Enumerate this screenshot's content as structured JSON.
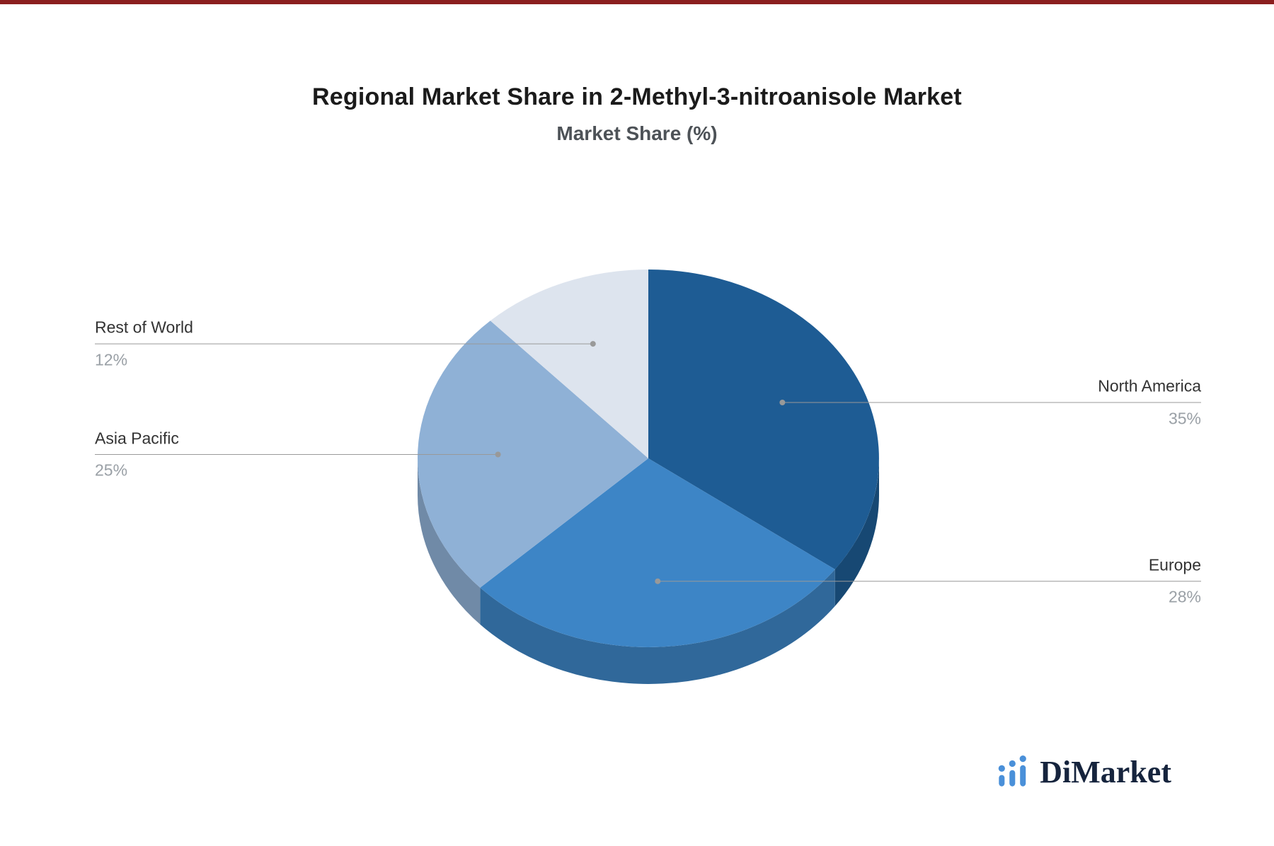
{
  "page": {
    "title": "Regional Market Share in 2-Methyl-3-nitroanisole Market",
    "subtitle": "Market Share (%)"
  },
  "decor": {
    "top_bar_color": "#8b1f1f"
  },
  "chart_data": {
    "type": "pie",
    "title": "Regional Market Share in 2-Methyl-3-nitroanisole Market",
    "subtitle": "Market Share (%)",
    "unit": "%",
    "effect": "3d",
    "start_angle_deg": -90,
    "direction": "clockwise",
    "legend": "none",
    "leader_line_color": "#999999",
    "label_name_color": "#333333",
    "label_value_color": "#9aa0a6",
    "slices": [
      {
        "label": "North America",
        "value": 35,
        "display": "35%",
        "color": "#1e5c94",
        "label_side": "right"
      },
      {
        "label": "Europe",
        "value": 28,
        "display": "28%",
        "color": "#3d85c6",
        "label_side": "right"
      },
      {
        "label": "Asia Pacific",
        "value": 25,
        "display": "25%",
        "color": "#8fb1d6",
        "label_side": "left"
      },
      {
        "label": "Rest of World",
        "value": 12,
        "display": "12%",
        "color": "#dde4ee",
        "label_side": "left"
      }
    ]
  },
  "branding": {
    "logo_text": "DiMarket",
    "logo_icon": "bar-chart-icon",
    "logo_text_color": "#16243d",
    "logo_icon_color": "#4a90d9"
  }
}
